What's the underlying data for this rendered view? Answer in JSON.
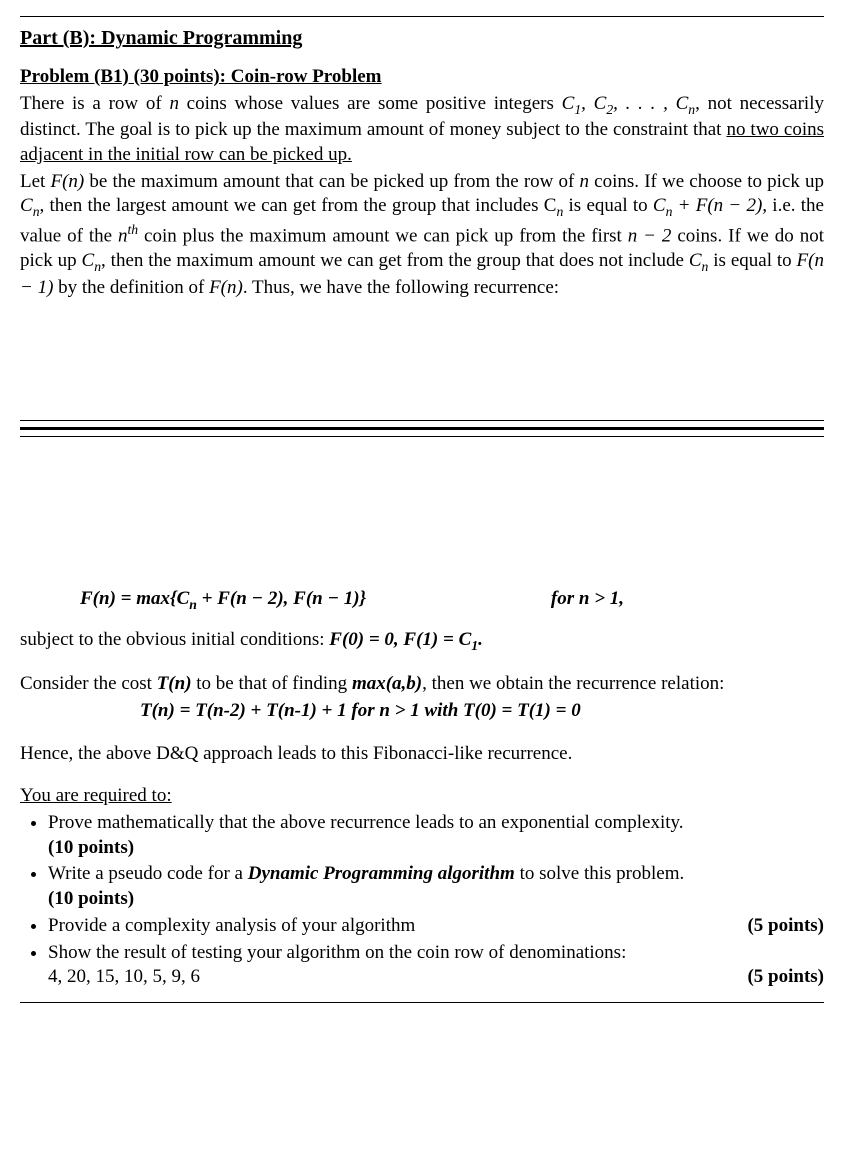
{
  "part_title": "Part (B): Dynamic Programming",
  "problem_title": "Problem (B1) (30 points): Coin-row Problem",
  "p1a": "There is a row of ",
  "p1b": " coins whose values are some positive integers ",
  "p1c": ", not necessarily distinct. The goal is to pick up the maximum amount of money subject to the constraint that ",
  "p1u": "no two coins adjacent in the initial row can be picked up.",
  "p2a": "Let ",
  "p2b": " be the maximum amount that can be picked up from the row of ",
  "p2c": " coins. If we choose to pick up ",
  "p2d": ", then the largest amount we can get from the group that includes ",
  "p2e": " is equal to ",
  "p2f": "  i.e. the value of the ",
  "p2g": " coin plus the maximum amount we can pick up from the first ",
  "p2h": " coins. If we do not pick up ",
  "p2i": ", then the maximum amount we can get from the group that does not include ",
  "p2j": " is equal to ",
  "p2k": " by the definition of ",
  "p2l": ". Thus, we have the following recurrence:",
  "formula_main": "F(n) = max{Cₙ + F(n − 2), F(n − 1)}",
  "formula_cond": "for n > 1,",
  "subject_a": "subject to the obvious initial conditions:  ",
  "subject_b": "F(0) = 0, F(1) = C",
  "consider_a": "Consider the cost ",
  "consider_b": " to be that of finding ",
  "consider_c": ", then we obtain the recurrence relation:",
  "recur": "T(n) = T(n-2) + T(n-1) + 1   for  n > 1 with T(0) = T(1) = 0",
  "hence": "Hence, the above D&Q approach leads to this Fibonacci-like recurrence.",
  "req_title": "You are required to:",
  "req1a": "Prove mathematically that the above recurrence leads to an exponential complexity.",
  "req1p": "(10 points)",
  "req2a": "Write a pseudo code for a ",
  "req2b": "Dynamic Programming algorithm",
  "req2c": " to solve this problem.",
  "req2p": "(10 points)",
  "req3a": "Provide a complexity analysis of your algorithm",
  "req3p": "(5 points)",
  "req4a": "Show the result of testing your algorithm on the coin row of denominations:",
  "req4b": " 4, 20, 15, 10, 5, 9, 6",
  "req4p": "(5 points)",
  "sym": {
    "n": "n",
    "C": "C",
    "Fn": "F(n)",
    "Cn_sub": "n",
    "n_minus_2": "n − 2",
    "th": "th",
    "one": "1",
    "two": "2",
    "Fn_minus1": "F(n − 1)",
    "Cn_plus": "Cₙ + F(n − 2),",
    "Tn": "T(n)",
    "maxab": "max(a,b)",
    "dot": "."
  }
}
